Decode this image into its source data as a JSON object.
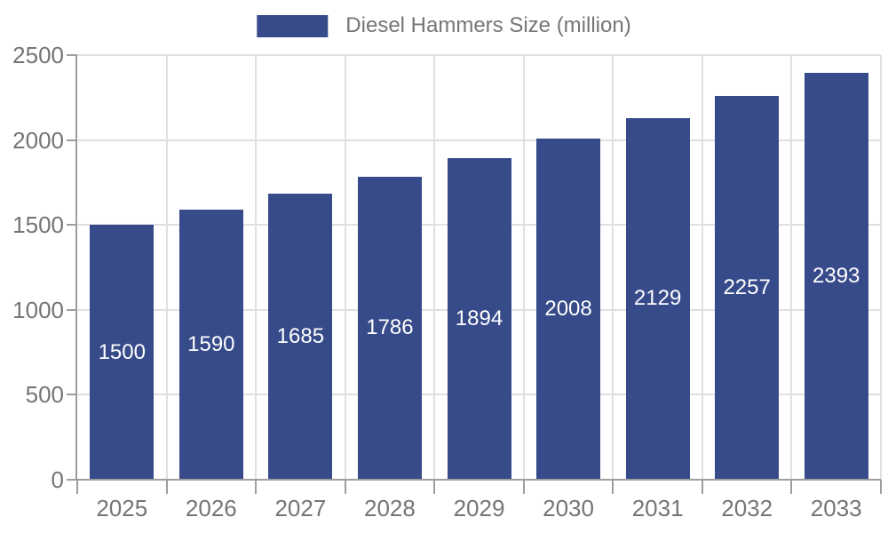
{
  "legend": {
    "label": "Diesel Hammers Size (million)"
  },
  "chart_data": {
    "type": "bar",
    "title": "",
    "categories": [
      "2025",
      "2026",
      "2027",
      "2028",
      "2029",
      "2030",
      "2031",
      "2032",
      "2033"
    ],
    "values": [
      1500,
      1590,
      1685,
      1786,
      1894,
      2008,
      2129,
      2257,
      2393
    ],
    "series_name": "Diesel Hammers Size (million)",
    "xlabel": "",
    "ylabel": "",
    "ylim": [
      0,
      2500
    ],
    "yticks": [
      0,
      500,
      1000,
      1500,
      2000,
      2500
    ],
    "grid": true,
    "legend_position": "top-center",
    "value_labels": "inside-center",
    "colors": {
      "bar": "#374A8A",
      "value_label": "#ffffff",
      "grid": "#e0e0e0",
      "axis": "#9e9e9e",
      "tick_text": "#757575",
      "background": "#ffffff"
    }
  }
}
